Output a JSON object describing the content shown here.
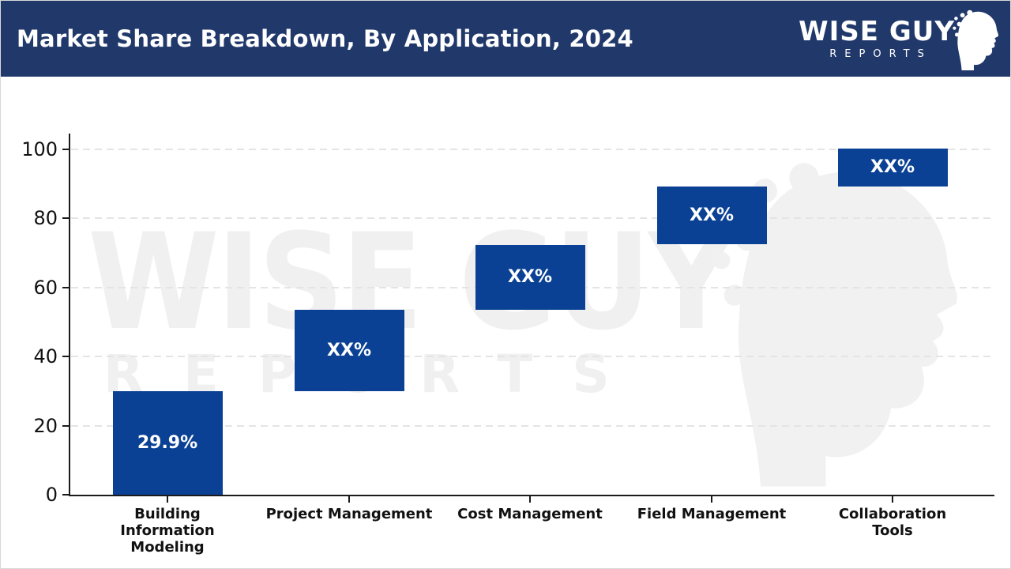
{
  "header": {
    "title": "Market Share Breakdown, By Application, 2024",
    "logo": {
      "line1": "WISE GUY",
      "line2": "REPORTS"
    }
  },
  "watermark": {
    "line1": "WISE GUY",
    "line2": "REPORTS"
  },
  "colors": {
    "header_bg": "#21386b",
    "bar": "#0a4194",
    "bar_label": "#ffffff",
    "grid": "#e4e4e4",
    "axis": "#1a1a1a",
    "watermark": "#f0f0f0"
  },
  "chart_data": {
    "type": "bar",
    "subtype": "waterfall",
    "title": "Market Share Breakdown, By Application, 2024",
    "xlabel": "",
    "ylabel": "",
    "ylim": [
      0,
      104
    ],
    "yticks": [
      0,
      20,
      40,
      60,
      80,
      100
    ],
    "grid": "horizontal dashed",
    "legend": "none",
    "categories": [
      "Building Information Modeling",
      "Project Management",
      "Cost Management",
      "Field Management",
      "Collaboration Tools"
    ],
    "category_lines": [
      [
        "Building",
        "Information",
        "Modeling"
      ],
      [
        "Project Management"
      ],
      [
        "Cost Management"
      ],
      [
        "Field Management"
      ],
      [
        "Collaboration",
        "Tools"
      ]
    ],
    "bars": [
      {
        "category": "Building Information Modeling",
        "start": 0,
        "end": 29.9,
        "value_label": "29.9%"
      },
      {
        "category": "Project Management",
        "start": 30.0,
        "end": 53.5,
        "value_label": "XX%"
      },
      {
        "category": "Cost Management",
        "start": 53.5,
        "end": 72.3,
        "value_label": "XX%"
      },
      {
        "category": "Field Management",
        "start": 72.5,
        "end": 89.1,
        "value_label": "XX%"
      },
      {
        "category": "Collaboration Tools",
        "start": 89.1,
        "end": 100.2,
        "value_label": "XX%"
      }
    ]
  }
}
